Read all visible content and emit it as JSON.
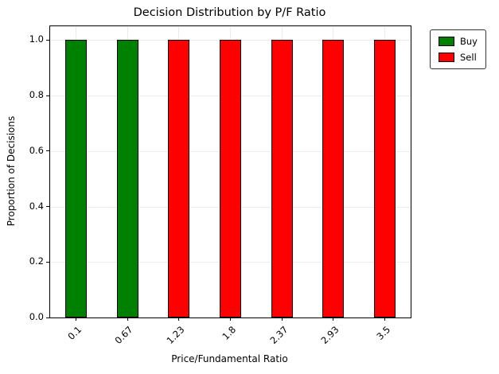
{
  "chart_data": {
    "type": "bar",
    "title": "Decision Distribution by P/F Ratio",
    "xlabel": "Price/Fundamental Ratio",
    "ylabel": "Proportion of Decisions",
    "categories": [
      "0.1",
      "0.67",
      "1.23",
      "1.8",
      "2.37",
      "2.93",
      "3.5"
    ],
    "series": [
      {
        "name": "Buy",
        "color": "#008000",
        "values": [
          1.0,
          1.0,
          0,
          0,
          0,
          0,
          0
        ]
      },
      {
        "name": "Sell",
        "color": "#ff0000",
        "values": [
          0,
          0,
          1.0,
          1.0,
          1.0,
          1.0,
          1.0
        ]
      }
    ],
    "stacked": true,
    "ylim": [
      0,
      1.05
    ],
    "yticks": [
      0.0,
      0.2,
      0.4,
      0.6,
      0.8,
      1.0
    ],
    "ytick_labels": [
      "0.0",
      "0.2",
      "0.4",
      "0.6",
      "0.8",
      "1.0"
    ],
    "grid": true,
    "bar_edge_color": "#000000",
    "legend_position": "outside upper right"
  }
}
